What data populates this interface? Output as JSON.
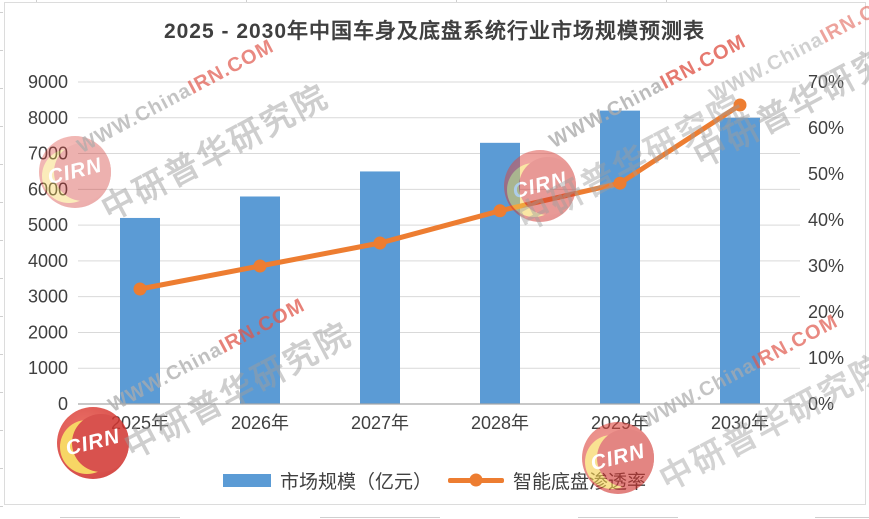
{
  "title": "2025 - 2030年中国车身及底盘系统行业市场规模预测表",
  "legend": {
    "bar_label": "市场规模（亿元）",
    "line_label": "智能底盘渗透率"
  },
  "watermark": {
    "url_gray": "WWW.China",
    "url_red": "IRN.COM",
    "cn_text": "中研普华研究院",
    "logo_text": "CIRN"
  },
  "colors": {
    "bar": "#5B9BD5",
    "line": "#ED7D31",
    "grid": "#D9D9D9",
    "axis_line": "#A6A6A6",
    "text": "#404040",
    "watermark_gray": "#ACACAC",
    "watermark_red": "#E0584C"
  },
  "chart_data": {
    "type": "bar+line combo",
    "title": "2025 - 2030年中国车身及底盘系统行业市场规模预测表",
    "categories": [
      "2025年",
      "2026年",
      "2027年",
      "2028年",
      "2029年",
      "2030年"
    ],
    "series": [
      {
        "name": "市场规模（亿元）",
        "type": "bar",
        "axis": "left",
        "unit": "亿元",
        "values": [
          5200,
          5800,
          6500,
          7300,
          8200,
          8000
        ]
      },
      {
        "name": "智能底盘渗透率",
        "type": "line",
        "axis": "right",
        "unit": "%",
        "values": [
          25,
          30,
          35,
          42,
          48,
          65
        ]
      }
    ],
    "left_axis": {
      "min": 0,
      "max": 9000,
      "step": 1000,
      "ticks": [
        "9000",
        "8000",
        "7000",
        "6000",
        "5000",
        "4000",
        "3000",
        "2000",
        "1000",
        "0"
      ]
    },
    "right_axis": {
      "min": 0,
      "max": 70,
      "step": 10,
      "ticks": [
        "70%",
        "60%",
        "50%",
        "40%",
        "30%",
        "20%",
        "10%",
        "0%"
      ]
    },
    "grid": true,
    "legend_position": "bottom"
  }
}
